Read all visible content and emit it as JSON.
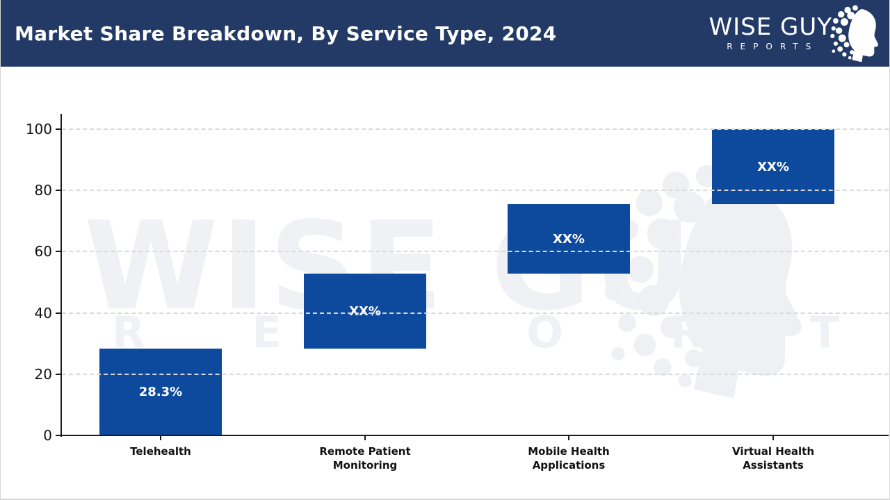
{
  "header": {
    "title": "Market Share Breakdown, By Service Type, 2024",
    "brand_line1": "WISE GUY",
    "brand_line2": "REPORTS",
    "brand_icon": "head-profile-dots-icon"
  },
  "watermark": {
    "line1": "WISE GUY",
    "line2": "R E P O R T S"
  },
  "colors": {
    "header_bg": "#233a66",
    "bar_fill": "#0d4a9e",
    "bar_label": "#ffffff",
    "axis": "#1a1a1a",
    "grid": "#d9d9d9",
    "title_text": "#ffffff",
    "tick_text": "#111111",
    "watermark": "#eef0f3",
    "page_border": "#d6d6d6"
  },
  "chart_data": {
    "type": "bar",
    "variant": "waterfall",
    "title": "Market Share Breakdown, By Service Type, 2024",
    "categories": [
      "Telehealth",
      "Remote Patient\nMonitoring",
      "Mobile Health\nApplications",
      "Virtual Health\nAssistants"
    ],
    "segments": [
      {
        "category": "Telehealth",
        "start": 0,
        "end": 28.3,
        "value": 28.3,
        "label": "28.3%"
      },
      {
        "category": "Remote Patient Monitoring",
        "start": 28.3,
        "end": 52.8,
        "value": 24.5,
        "label": "XX%"
      },
      {
        "category": "Mobile Health Applications",
        "start": 52.8,
        "end": 75.5,
        "value": 22.7,
        "label": "XX%"
      },
      {
        "category": "Virtual Health Assistants",
        "start": 75.5,
        "end": 100,
        "value": 24.5,
        "label": "XX%"
      }
    ],
    "yticks": [
      0,
      20,
      40,
      60,
      80,
      100
    ],
    "ylim": [
      0,
      105
    ],
    "xlabel": "",
    "ylabel": "",
    "grid": true,
    "grid_style": "dashed, drawn above bars",
    "legend": false,
    "bar_color": "#0d4a9e"
  }
}
